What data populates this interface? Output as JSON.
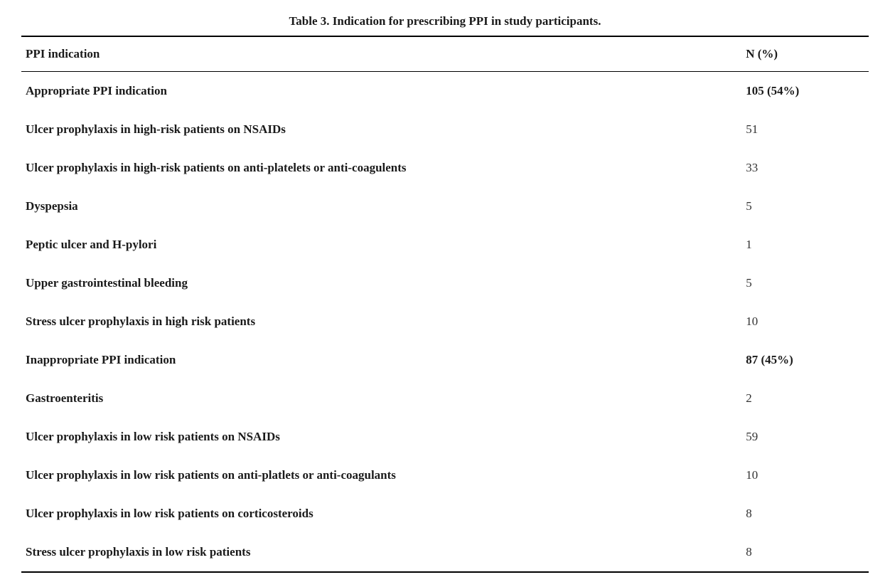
{
  "table": {
    "title": "Table 3. Indication for prescribing PPI in study participants.",
    "columns": {
      "indication": "PPI indication",
      "count": "N (%)"
    },
    "rows": [
      {
        "label": "Appropriate PPI indication",
        "value": "105 (54%)",
        "valueBold": true
      },
      {
        "label": "Ulcer prophylaxis in high-risk patients on NSAIDs",
        "value": "51",
        "valueBold": false
      },
      {
        "label": "Ulcer prophylaxis in high-risk patients on anti-platelets or anti-coagulents",
        "value": "33",
        "valueBold": false
      },
      {
        "label": "Dyspepsia",
        "value": "5",
        "valueBold": false
      },
      {
        "label": "Peptic ulcer and H-pylori",
        "value": "1",
        "valueBold": false
      },
      {
        "label": "Upper gastrointestinal bleeding",
        "value": "5",
        "valueBold": false
      },
      {
        "label": "Stress ulcer prophylaxis in high risk patients",
        "value": "10",
        "valueBold": false
      },
      {
        "label": "Inappropriate PPI indication",
        "value": "87 (45%)",
        "valueBold": true
      },
      {
        "label": "Gastroenteritis",
        "value": "2",
        "valueBold": false
      },
      {
        "label": "Ulcer prophylaxis in low risk patients on NSAIDs",
        "value": "59",
        "valueBold": false
      },
      {
        "label": "Ulcer prophylaxis in low risk patients on anti-platlets or anti-coagulants",
        "value": "10",
        "valueBold": false
      },
      {
        "label": "Ulcer prophylaxis in low risk patients on corticosteroids",
        "value": "8",
        "valueBold": false
      },
      {
        "label": "Stress ulcer prophylaxis in low risk patients",
        "value": "8",
        "valueBold": false
      }
    ]
  }
}
